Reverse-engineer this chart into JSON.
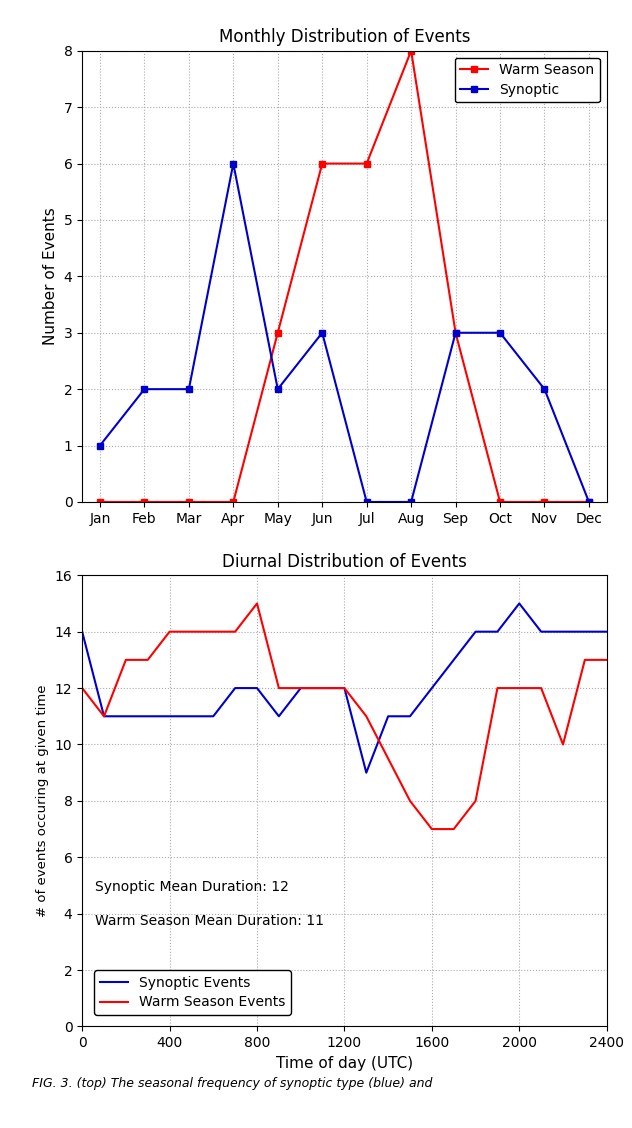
{
  "top_title": "Monthly Distribution of Events",
  "bottom_title": "Diurnal Distribution of Events",
  "months": [
    "Jan",
    "Feb",
    "Mar",
    "Apr",
    "May",
    "Jun",
    "Jul",
    "Aug",
    "Sep",
    "Oct",
    "Nov",
    "Dec"
  ],
  "warm_season_monthly": [
    0,
    0,
    0,
    0,
    3,
    6,
    6,
    8,
    3,
    0,
    0,
    0
  ],
  "synoptic_monthly": [
    1,
    2,
    2,
    6,
    2,
    3,
    0,
    0,
    3,
    3,
    2,
    0
  ],
  "diurnal_x": [
    0,
    100,
    200,
    300,
    400,
    500,
    600,
    700,
    800,
    900,
    1000,
    1100,
    1200,
    1300,
    1400,
    1500,
    1600,
    1700,
    1800,
    1900,
    2000,
    2100,
    2200,
    2300,
    2400
  ],
  "synoptic_diurnal": [
    14,
    11,
    11,
    11,
    11,
    11,
    11,
    12,
    12,
    11,
    12,
    12,
    12,
    9,
    11,
    11,
    12,
    13,
    14,
    14,
    15,
    14,
    14,
    14,
    14
  ],
  "warm_season_diurnal": [
    12,
    11,
    13,
    13,
    14,
    14,
    14,
    14,
    15,
    12,
    12,
    12,
    12,
    11,
    9.5,
    8,
    7,
    7,
    8,
    12,
    12,
    12,
    10,
    13,
    13
  ],
  "warm_season_color": "#FF0000",
  "synoptic_color": "#0000CC",
  "monthly_ylim": [
    0,
    8
  ],
  "monthly_yticks": [
    0,
    1,
    2,
    3,
    4,
    5,
    6,
    7,
    8
  ],
  "diurnal_ylim": [
    0,
    16
  ],
  "diurnal_yticks": [
    0,
    2,
    4,
    6,
    8,
    10,
    12,
    14,
    16
  ],
  "diurnal_xticks": [
    0,
    400,
    800,
    1200,
    1600,
    2000,
    2400
  ],
  "monthly_ylabel": "Number of Events",
  "diurnal_ylabel": "# of events occuring at given time",
  "diurnal_xlabel": "Time of day (UTC)",
  "annotation_synoptic": "Synoptic Mean Duration: 12",
  "annotation_warm": "Warm Season Mean Duration: 11",
  "legend1_warm": "Warm Season",
  "legend1_synoptic": "Synoptic",
  "legend2_synoptic": "Synoptic Events",
  "legend2_warm": "Warm Season Events",
  "bg_color": "#FFFFFF",
  "grid_color": "#AAAAAA",
  "caption": "FIG. 3. (top) The seasonal frequency of synoptic type (blue) and",
  "fig_width": 6.32,
  "fig_height": 11.28
}
